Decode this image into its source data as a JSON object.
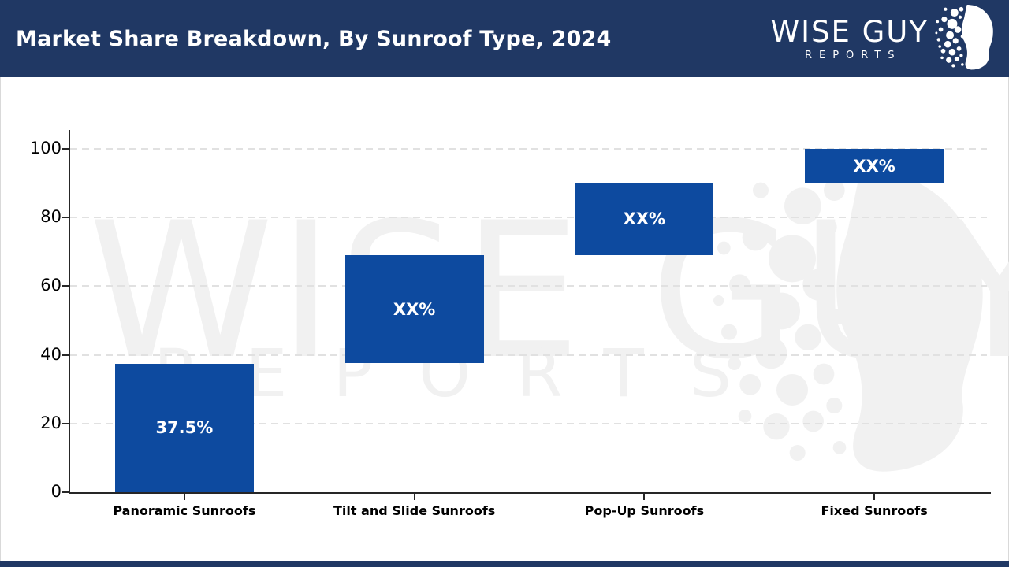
{
  "header": {
    "title": "Market Share Breakdown, By Sunroof Type, 2024",
    "logo": {
      "name": "WISE GUY",
      "subtitle": "REPORTS"
    }
  },
  "watermark": {
    "line1": "WISE GUY",
    "line2": "REPORTS"
  },
  "colors": {
    "header_navy": "#203864",
    "bar_blue": "#0d4a9f",
    "watermark_gray": "#f1f1f1",
    "gridline_gray": "#e1e1e1",
    "axis_dark": "#262626",
    "value_label_white": "#ffffff"
  },
  "chart_data": {
    "type": "bar",
    "subtype": "waterfall",
    "title": "Market Share Breakdown, By Sunroof Type, 2024",
    "categories": [
      "Panoramic Sunroofs",
      "Tilt and Slide Sunroofs",
      "Pop-Up Sunroofs",
      "Fixed Sunroofs"
    ],
    "segments": [
      {
        "category": "Panoramic Sunroofs",
        "start": 0,
        "end": 37.5,
        "label": "37.5%"
      },
      {
        "category": "Tilt and Slide Sunroofs",
        "start": 37.5,
        "end": 69,
        "label": "XX%"
      },
      {
        "category": "Pop-Up Sunroofs",
        "start": 69,
        "end": 90,
        "label": "XX%"
      },
      {
        "category": "Fixed Sunroofs",
        "start": 90,
        "end": 100,
        "label": "XX%"
      }
    ],
    "yticks": [
      0,
      20,
      40,
      60,
      80,
      100
    ],
    "ylim": [
      0,
      105.5
    ],
    "xlabel": "",
    "ylabel": "",
    "grid": "horizontal-dashed",
    "legend": "none"
  }
}
